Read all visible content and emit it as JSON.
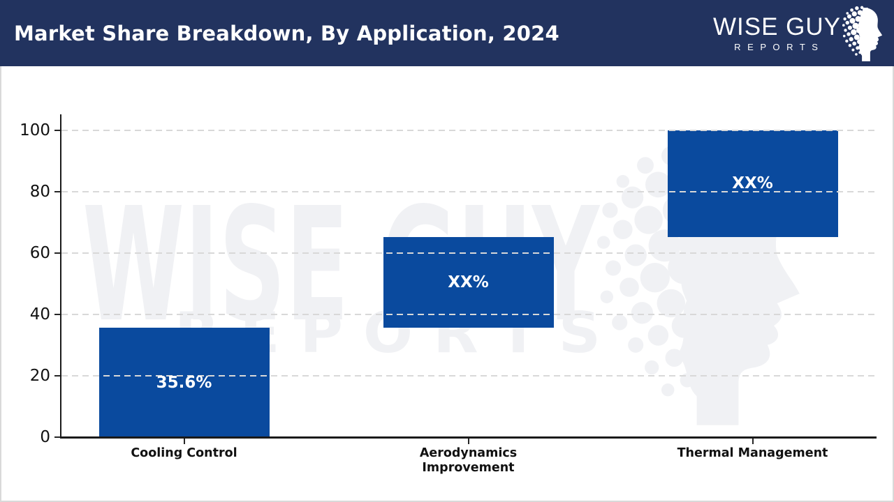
{
  "header": {
    "title": "Market Share Breakdown, By Application, 2024",
    "bg_color": "#22335f",
    "logo": {
      "wordmark": "WISE GUY",
      "subtext": "R E P O R T S"
    }
  },
  "watermark": {
    "line1": "WISE GUY",
    "line2": "R E P O R T S"
  },
  "chart_data": {
    "type": "bar",
    "subtype": "floating-waterfall",
    "title": "Market Share Breakdown, By Application, 2024",
    "categories": [
      "Cooling Control",
      "Aerodynamics Improvement",
      "Thermal Management"
    ],
    "segments": [
      {
        "category": "Cooling Control",
        "start": 0,
        "end": 35.6,
        "label": "35.6%"
      },
      {
        "category": "Aerodynamics Improvement",
        "start": 35.6,
        "end": 65.3,
        "label": "XX%"
      },
      {
        "category": "Thermal Management",
        "start": 65.3,
        "end": 100,
        "label": "XX%"
      }
    ],
    "yticks": [
      0,
      20,
      40,
      60,
      80,
      100
    ],
    "ylim": [
      0,
      105
    ],
    "xlabel": "",
    "ylabel": "",
    "grid": true,
    "gridline_style": "dashed",
    "legend": "none",
    "bar_color": "#0a4a9e",
    "label_color": "#ffffff",
    "label_wrap": [
      "nowrap",
      "wrap",
      "nowrap"
    ]
  }
}
